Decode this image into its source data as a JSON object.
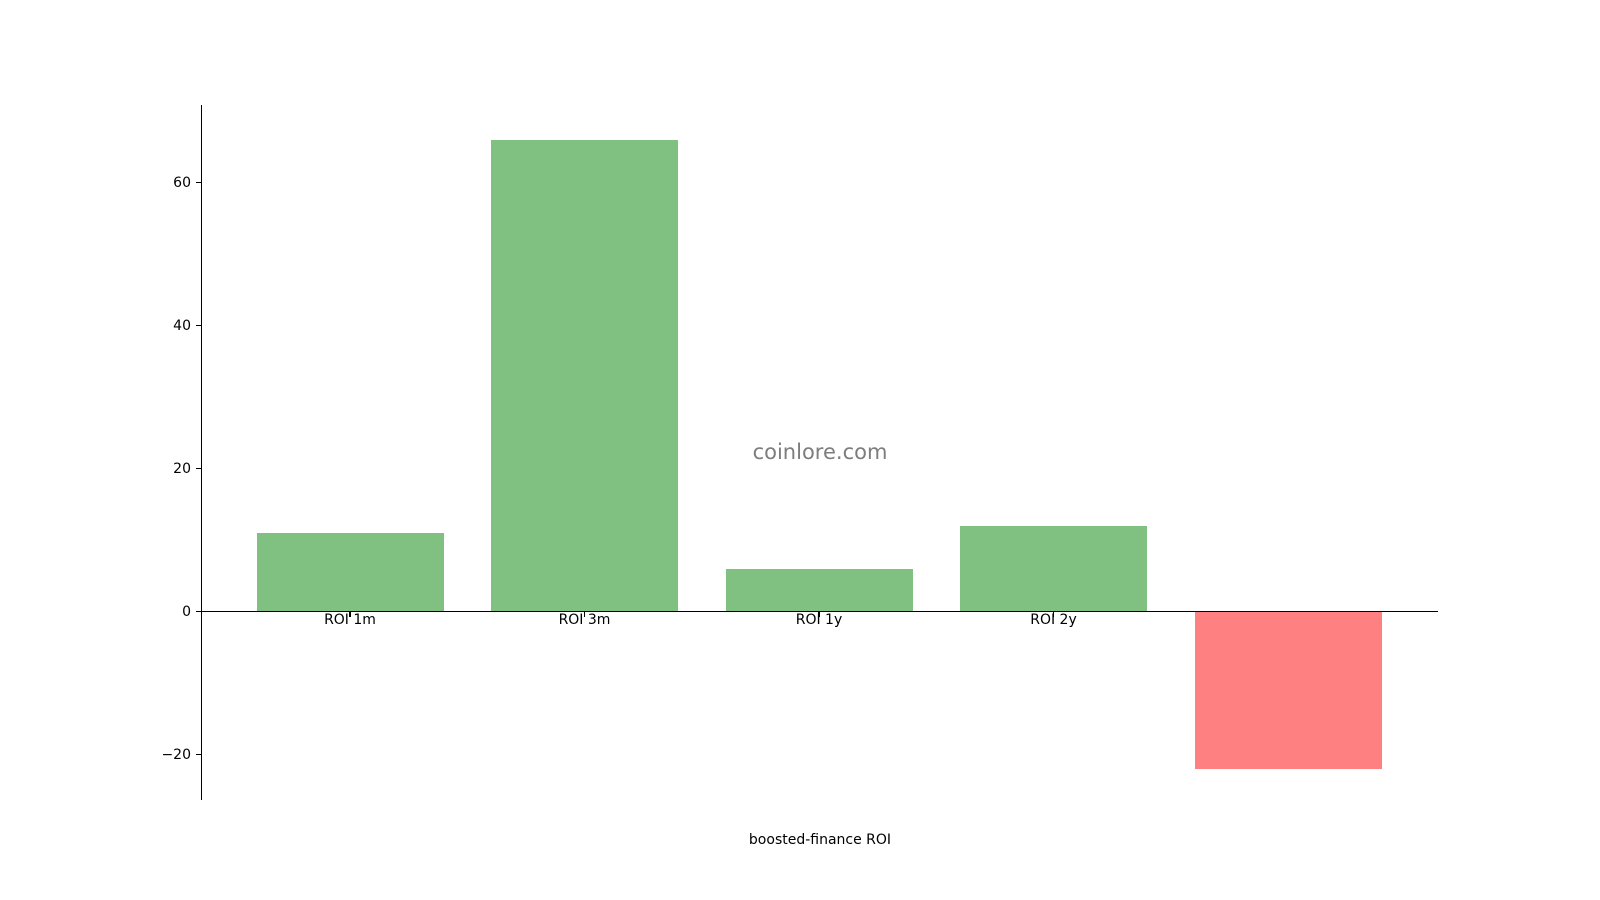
{
  "chart_data": {
    "type": "bar",
    "categories": [
      "ROI 1m",
      "ROI 3m",
      "ROI 1y",
      "ROI 2y",
      ""
    ],
    "values": [
      11,
      66,
      6,
      12,
      -22
    ],
    "title": "",
    "xlabel": "boosted-finance ROI",
    "ylabel": "",
    "yticks": [
      60,
      40,
      20,
      0,
      -20
    ],
    "ylim": [
      -26.4,
      70.4
    ],
    "grid": false,
    "legend": null,
    "positive_color": "#80c080",
    "negative_color": "#ff8080",
    "axis_color": "#000000",
    "tick_label_color": "#000000",
    "watermark": {
      "text": "coinlore.com",
      "color": "#7d7d7d"
    }
  }
}
